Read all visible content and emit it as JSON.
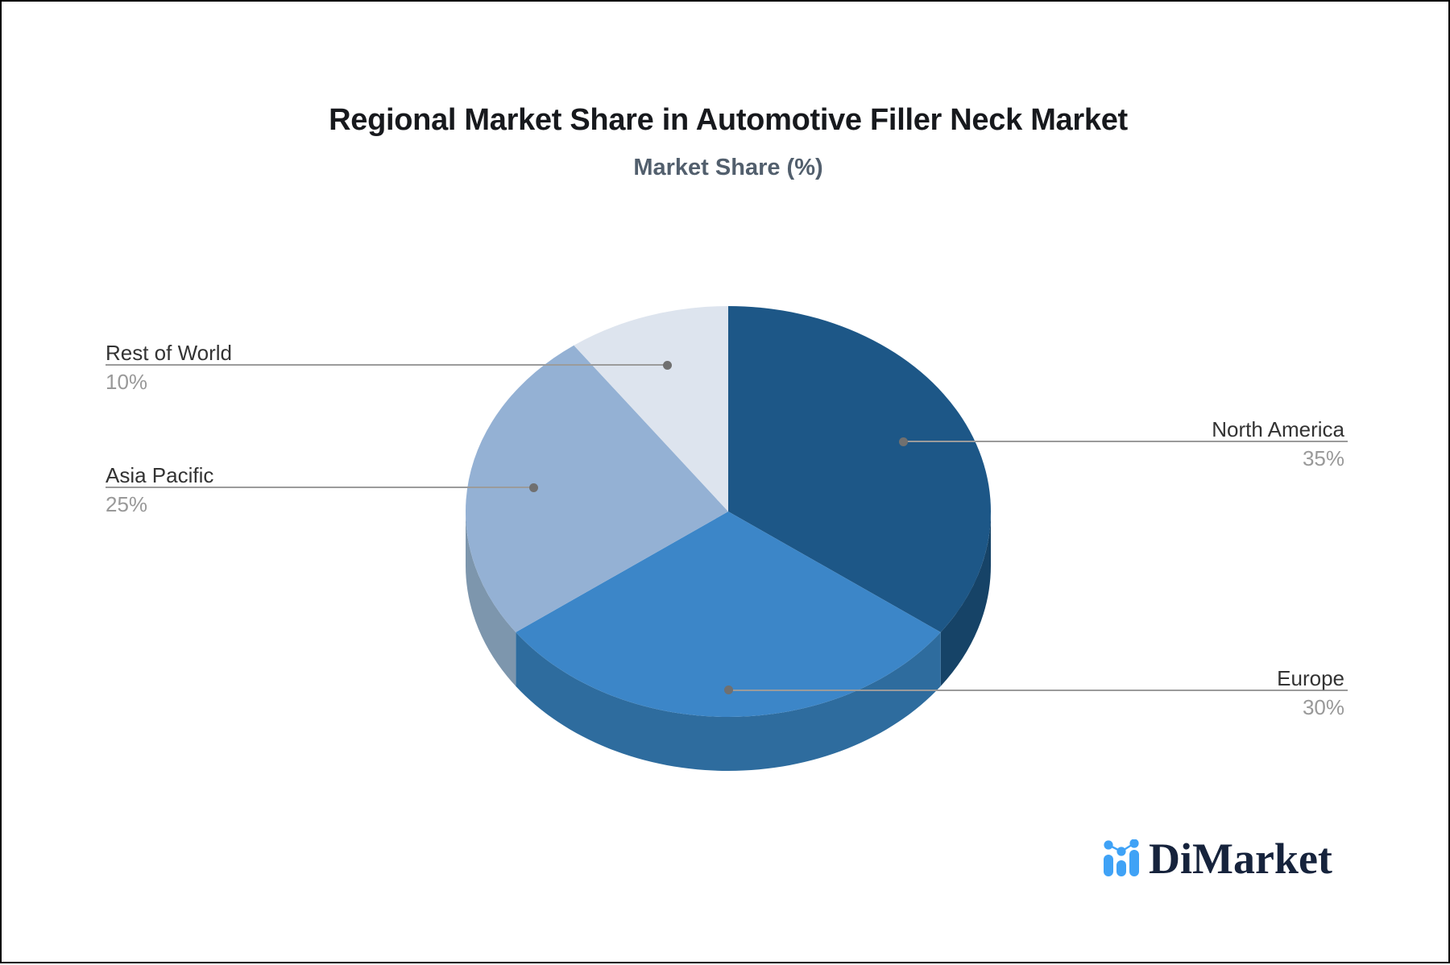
{
  "header": {
    "title": "Regional Market Share in Automotive Filler Neck Market",
    "subtitle": "Market Share (%)"
  },
  "chart_data": {
    "type": "pie",
    "style": "3d-pie",
    "title": "Regional Market Share in Automotive Filler Neck Market",
    "subtitle": "Market Share (%)",
    "unit": "%",
    "start_angle": "12 o'clock, clockwise",
    "legend_position": "none (outside labels with leader lines)",
    "slices": [
      {
        "name": "North America",
        "value": 35,
        "pct_label": "35%",
        "color": "#1d5787",
        "side_color": "#164367"
      },
      {
        "name": "Europe",
        "value": 30,
        "pct_label": "30%",
        "color": "#3c86c8",
        "side_color": "#2e6c9e"
      },
      {
        "name": "Asia Pacific",
        "value": 25,
        "pct_label": "25%",
        "color": "#94b1d4",
        "side_color": "#7d96ad"
      },
      {
        "name": "Rest of World",
        "value": 10,
        "pct_label": "10%",
        "color": "#dde4ee",
        "side_color": "#b9c4d3"
      }
    ]
  },
  "branding": {
    "logo_text": "DiMarket",
    "logo_text_color": "#16233c",
    "logo_icon_color": "#3fa2f6"
  },
  "styles": {
    "leader_line_color": "#9b9b9b",
    "dot_color": "#707070",
    "label_color": "#333333",
    "pct_color": "#999999",
    "background": "#ffffff"
  }
}
